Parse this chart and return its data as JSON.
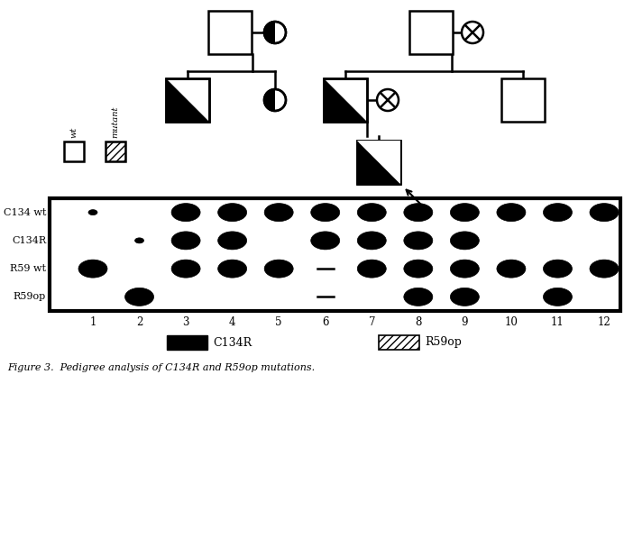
{
  "title": "Figure 3.  Pedigree analysis of C134R and R59op mutations.",
  "row_labels": [
    "C134 wt",
    "C134R",
    "R59 wt",
    "R59op"
  ],
  "col_labels": [
    "1",
    "2",
    "3",
    "4",
    "5",
    "6",
    "7",
    "8",
    "9",
    "10",
    "11",
    "12"
  ],
  "dot_present": {
    "C134 wt": [
      1,
      0,
      1,
      1,
      1,
      1,
      1,
      1,
      1,
      1,
      1,
      1
    ],
    "C134R": [
      0,
      1,
      1,
      1,
      0,
      1,
      1,
      1,
      1,
      0,
      0,
      0
    ],
    "R59 wt": [
      1,
      0,
      1,
      1,
      1,
      0,
      1,
      1,
      1,
      1,
      1,
      1
    ],
    "R59op": [
      0,
      1,
      0,
      0,
      0,
      0,
      0,
      1,
      1,
      0,
      1,
      0
    ]
  },
  "dot_small": {
    "C134 wt": [
      1,
      0,
      0,
      0,
      0,
      0,
      0,
      0,
      0,
      0,
      0,
      0
    ],
    "C134R": [
      0,
      1,
      0,
      0,
      0,
      0,
      0,
      0,
      0,
      0,
      0,
      0
    ],
    "R59 wt": [
      0,
      0,
      0,
      0,
      0,
      0,
      0,
      0,
      0,
      0,
      0,
      0
    ],
    "R59op": [
      0,
      0,
      0,
      0,
      0,
      0,
      0,
      0,
      0,
      0,
      0,
      0
    ]
  },
  "dash_present": {
    "C134 wt": [
      0,
      0,
      0,
      0,
      0,
      0,
      0,
      0,
      0,
      0,
      0,
      0
    ],
    "C134R": [
      0,
      0,
      0,
      0,
      0,
      0,
      0,
      0,
      0,
      0,
      0,
      0
    ],
    "R59 wt": [
      0,
      0,
      0,
      0,
      0,
      1,
      0,
      0,
      0,
      0,
      0,
      0
    ],
    "R59op": [
      0,
      0,
      0,
      0,
      0,
      1,
      0,
      0,
      0,
      0,
      0,
      0
    ]
  },
  "background_color": "#ffffff"
}
